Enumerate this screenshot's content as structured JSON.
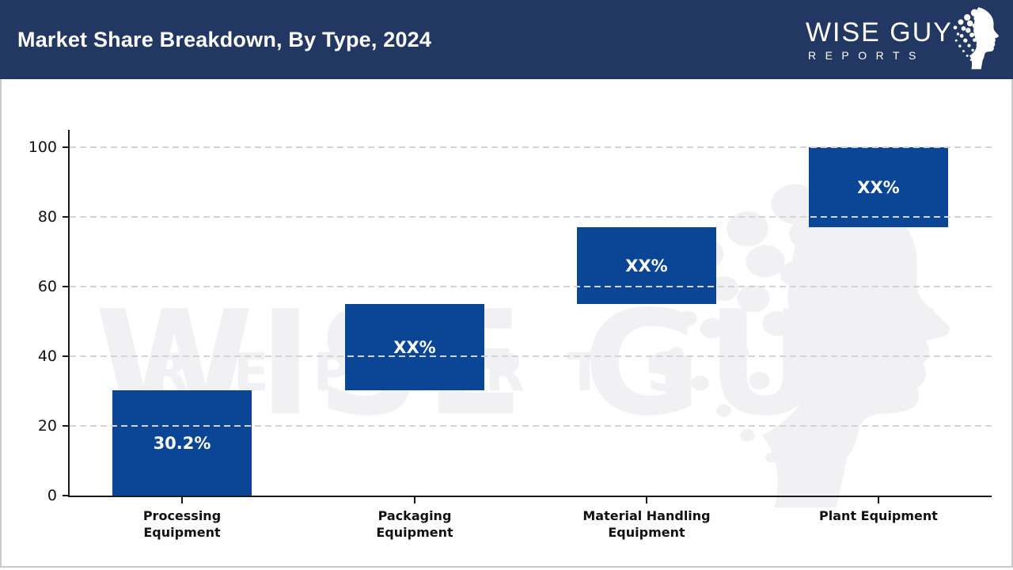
{
  "header": {
    "title": "Market Share Breakdown, By Type, 2024",
    "logo": {
      "line1": "WISE GUY",
      "line2": "REPORTS"
    }
  },
  "watermark": {
    "line1": "WISE GUY",
    "line2": "REPORTS"
  },
  "colors": {
    "header_bg": "#223761",
    "bar": "#0b4595",
    "bar_label_text": "#ffffff",
    "grid": "#d4d4d4",
    "axis": "#1a1a1a",
    "tick_text": "#111111",
    "watermark": "#f1f1f4",
    "card_border": "#c9c9c9",
    "card_bg": "#ffffff"
  },
  "chart_data": {
    "type": "bar",
    "subtype": "waterfall-floating-bars",
    "title": "Market Share Breakdown, By Type, 2024",
    "xlabel": "",
    "ylabel": "",
    "ylim": [
      0,
      105
    ],
    "yticks": [
      0,
      20,
      40,
      60,
      80,
      100
    ],
    "grid": "horizontal-dashed",
    "legend": "none",
    "categories": [
      "Processing Equipment",
      "Packaging Equipment",
      "Material Handling Equipment",
      "Plant Equipment"
    ],
    "category_label_lines": [
      [
        "Processing",
        "Equipment"
      ],
      [
        "Packaging",
        "Equipment"
      ],
      [
        "Material Handling",
        "Equipment"
      ],
      [
        "Plant Equipment"
      ]
    ],
    "segments": [
      {
        "category": "Processing Equipment",
        "start": 0,
        "end": 30.2,
        "label": "30.2%"
      },
      {
        "category": "Packaging Equipment",
        "start": 30.2,
        "end": 55,
        "label": "XX%"
      },
      {
        "category": "Material Handling Equipment",
        "start": 55,
        "end": 77,
        "label": "XX%"
      },
      {
        "category": "Plant Equipment",
        "start": 77,
        "end": 100,
        "label": "XX%"
      }
    ]
  }
}
